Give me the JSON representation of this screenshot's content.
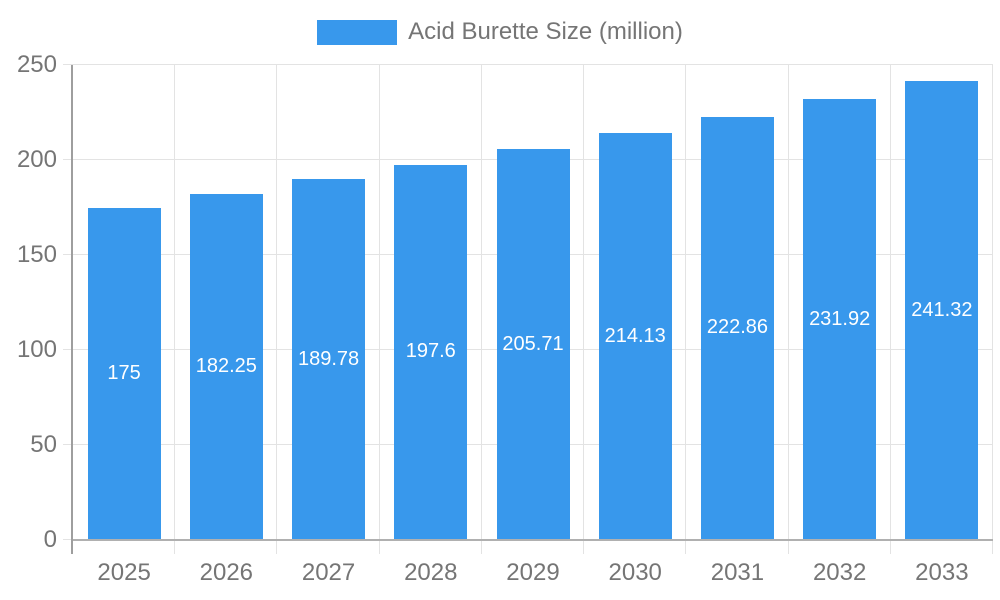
{
  "legend": {
    "label": "Acid Burette Size (million)"
  },
  "colors": {
    "bar": "#3898EC",
    "grid": "#e3e3e3",
    "y_axis_line": "#9e9e9e",
    "x_axis_line": "#b0b0b0",
    "axis_text": "#757575",
    "bar_label_text": "#ffffff",
    "background": "#ffffff"
  },
  "chart_data": {
    "type": "bar",
    "title": "Acid Burette Size (million)",
    "categories": [
      "2025",
      "2026",
      "2027",
      "2028",
      "2029",
      "2030",
      "2031",
      "2032",
      "2033"
    ],
    "values": [
      175,
      182.25,
      189.78,
      197.6,
      205.71,
      214.13,
      222.86,
      231.92,
      241.32
    ],
    "value_labels": [
      "175",
      "182.25",
      "189.78",
      "197.6",
      "205.71",
      "214.13",
      "222.86",
      "231.92",
      "241.32"
    ],
    "xlabel": "",
    "ylabel": "",
    "ylim": [
      0,
      250
    ],
    "yticks": [
      0,
      50,
      100,
      150,
      200,
      250
    ],
    "grid": true,
    "legend_position": "top-center",
    "value_label_position": "center-of-bar"
  }
}
